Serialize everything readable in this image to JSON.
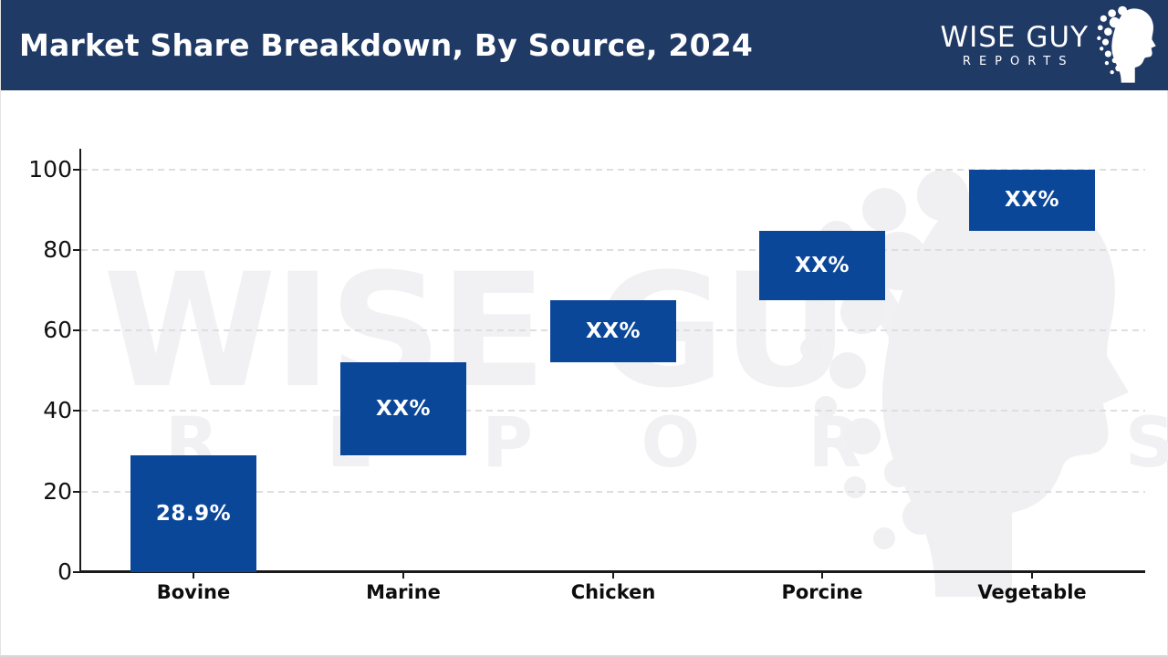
{
  "header": {
    "title": "Market Share Breakdown, By Source, 2024",
    "logo": {
      "line1": "WISE GUY",
      "line2": "REPORTS",
      "face_icon": "dotted-head-profile"
    }
  },
  "watermark": {
    "line1": "WISE GUY",
    "line2": "R E P O R T S",
    "face_icon": "dotted-head-profile"
  },
  "chart_data": {
    "type": "bar",
    "subtype": "waterfall-floating-bars",
    "title": "Market Share Breakdown, By Source, 2024",
    "categories": [
      "Bovine",
      "Marine",
      "Chicken",
      "Porcine",
      "Vegetable"
    ],
    "segments": [
      {
        "category": "Bovine",
        "from": 0,
        "to": 28.9,
        "value": 28.9,
        "label": "28.9%"
      },
      {
        "category": "Marine",
        "from": 28.9,
        "to": 52.0,
        "value": 23.1,
        "label": "XX%"
      },
      {
        "category": "Chicken",
        "from": 52.0,
        "to": 67.4,
        "value": 15.4,
        "label": "XX%"
      },
      {
        "category": "Porcine",
        "from": 67.4,
        "to": 84.6,
        "value": 17.2,
        "label": "XX%"
      },
      {
        "category": "Vegetable",
        "from": 84.6,
        "to": 100,
        "value": 15.4,
        "label": "XX%"
      }
    ],
    "yticks": [
      0,
      20,
      40,
      60,
      80,
      100
    ],
    "ylim": [
      0,
      105
    ],
    "xlabel": "",
    "ylabel": "",
    "grid": "dashed-horizontal",
    "legend": "none"
  },
  "colors": {
    "header_bg": "#203A66",
    "bar": "#0B4799",
    "bar_label": "#FFFFFF",
    "grid_line": "#DEDEDE",
    "axis": "#1A1A1A",
    "watermark": "#F1F1F3",
    "page_border": "#D8D8D8"
  }
}
